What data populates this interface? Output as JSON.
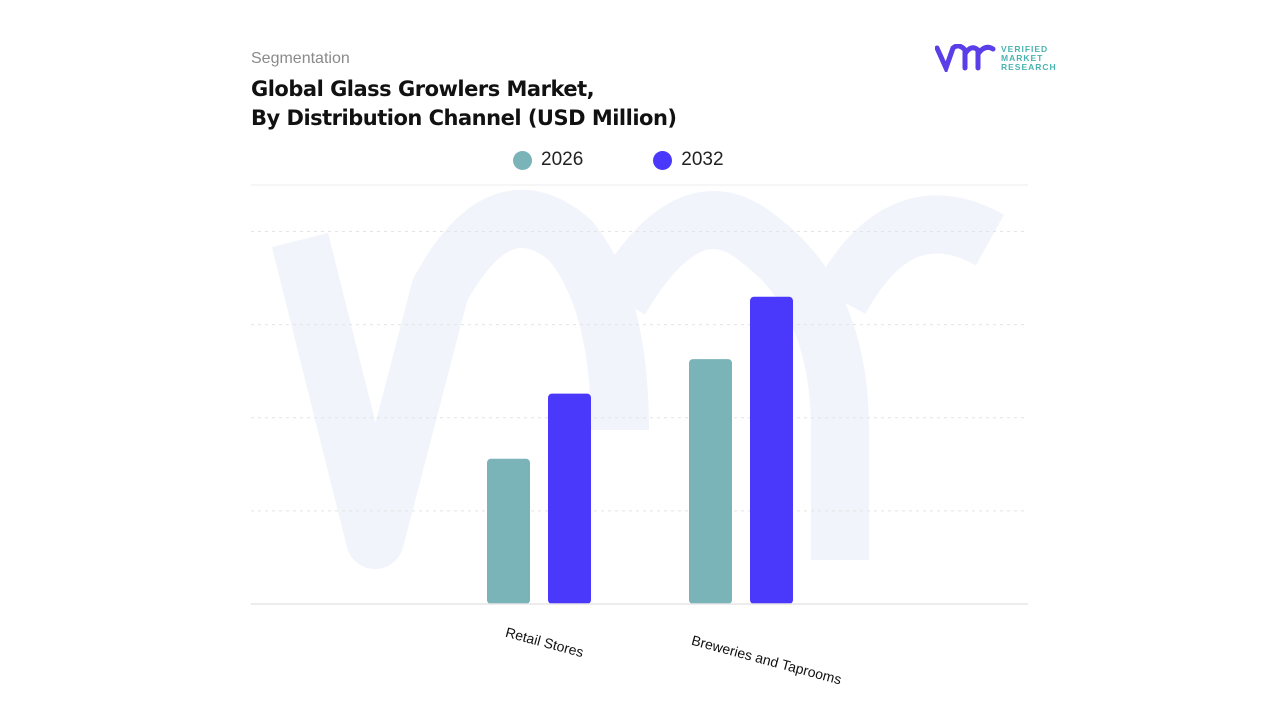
{
  "header": {
    "segment": "Segmentation",
    "title_line1": "Global Glass Growlers Market,",
    "title_line2": "By Distribution Channel (USD Million)"
  },
  "logo": {
    "line1": "VERIFIED",
    "line2": "MARKET",
    "line3": "RESEARCH"
  },
  "colors": {
    "s2026": "#7ab3b8",
    "s2032": "#4b39fb",
    "logo": "#5a3ee8",
    "watermark": "#f1f4fb"
  },
  "chart_data": {
    "type": "bar",
    "categories": [
      "Retail Stores",
      "Breweries and Taprooms"
    ],
    "series": [
      {
        "name": "2026",
        "values": [
          1.56,
          2.63
        ]
      },
      {
        "name": "2032",
        "values": [
          2.26,
          3.3
        ]
      }
    ],
    "ylim": [
      0,
      4.5
    ],
    "grid": true,
    "legend": "top-center"
  }
}
